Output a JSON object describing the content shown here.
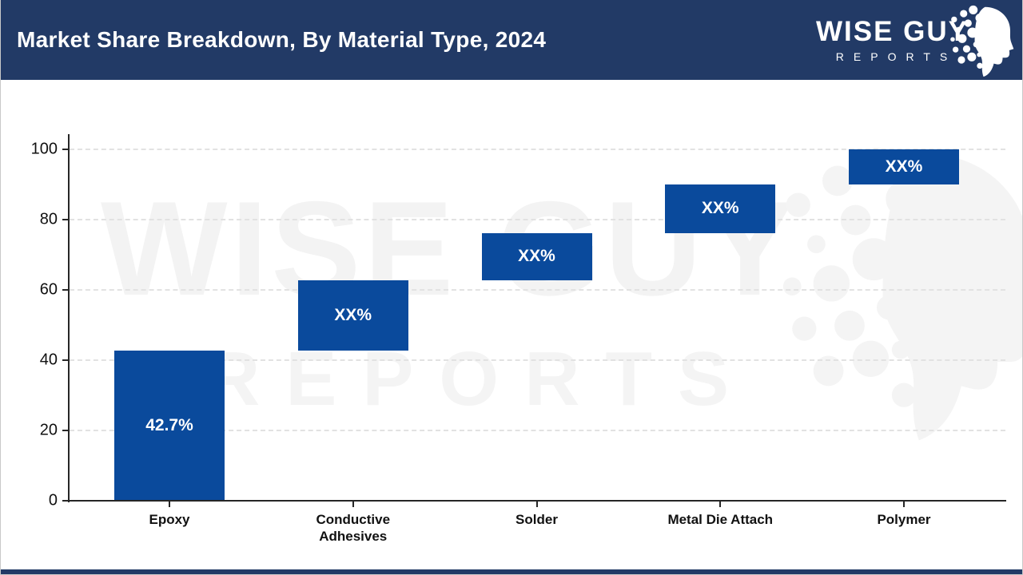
{
  "header": {
    "title": "Market Share Breakdown, By Material Type, 2024",
    "logo": {
      "line1": "WISE GUY",
      "line2": "REPORTS"
    },
    "bg_color": "#223a66"
  },
  "watermark": {
    "line1": "WISE GUY",
    "line2": "REPORTS"
  },
  "footer": {
    "accent_color": "#223a66"
  },
  "chart_data": {
    "type": "bar",
    "subtype": "waterfall",
    "title": "Market Share Breakdown, By Material Type, 2024",
    "categories": [
      "Epoxy",
      "Conductive Adhesives",
      "Solder",
      "Metal Die Attach",
      "Polymer"
    ],
    "segments": [
      [
        0,
        42.7
      ],
      [
        42.7,
        62.7
      ],
      [
        62.7,
        76.2
      ],
      [
        76.2,
        90
      ],
      [
        90,
        100
      ]
    ],
    "values": [
      42.7,
      20.0,
      13.5,
      13.8,
      10.0
    ],
    "bar_labels": [
      "42.7%",
      "XX%",
      "XX%",
      "XX%",
      "XX%"
    ],
    "yticks": [
      0,
      20,
      40,
      60,
      80,
      100
    ],
    "ylim": [
      0,
      105
    ],
    "xlabel": "",
    "ylabel": "",
    "grid": "horizontal-dashed",
    "legend": "none",
    "bar_color": "#0a4a9c",
    "bar_label_color": "#ffffff",
    "gridline_color": "#e2e2e2",
    "axis_color": "#262626"
  }
}
